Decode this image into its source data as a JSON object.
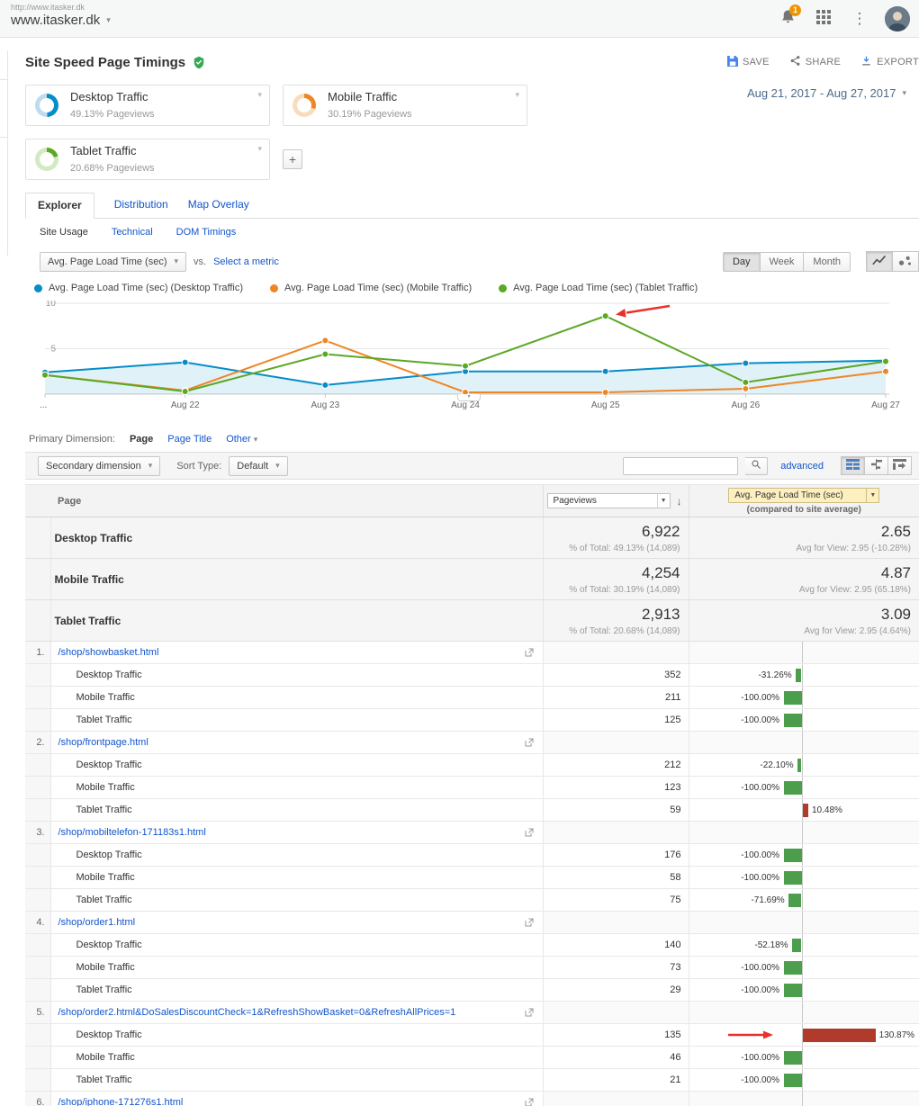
{
  "topbar": {
    "url": "http://www.itasker.dk",
    "account": "www.itasker.dk",
    "badge": "1"
  },
  "header": {
    "title": "Site Speed Page Timings",
    "save": "SAVE",
    "share": "SHARE",
    "export": "EXPORT"
  },
  "segments": [
    {
      "name": "Desktop Traffic",
      "detail": "49.13% Pageviews",
      "pct": 49.13,
      "color": "#058dc7",
      "color_light": "#bedcf0"
    },
    {
      "name": "Mobile Traffic",
      "detail": "30.19% Pageviews",
      "pct": 30.19,
      "color": "#ee8625",
      "color_light": "#f8ddbc"
    },
    {
      "name": "Tablet Traffic",
      "detail": "20.68% Pageviews",
      "pct": 20.68,
      "color": "#5aa824",
      "color_light": "#d4e9c2"
    }
  ],
  "date_range": "Aug 21, 2017 - Aug 27, 2017",
  "tabs": [
    "Explorer",
    "Distribution",
    "Map Overlay"
  ],
  "subtabs": [
    "Site Usage",
    "Technical",
    "DOM Timings"
  ],
  "metric_row": {
    "metric_select": "Avg. Page Load Time (sec)",
    "vs": "vs.",
    "select_metric": "Select a metric",
    "granularity": [
      "Day",
      "Week",
      "Month"
    ]
  },
  "chart_data": {
    "type": "line",
    "x": [
      "Aug 21",
      "Aug 22",
      "Aug 23",
      "Aug 24",
      "Aug 25",
      "Aug 26",
      "Aug 27"
    ],
    "x_tick_labels": [
      "...",
      "Aug 22",
      "Aug 23",
      "Aug 24",
      "Aug 25",
      "Aug 26",
      "Aug 27"
    ],
    "ylim": [
      0,
      10
    ],
    "yticks": [
      5,
      10
    ],
    "ylabel": "Avg. Page Load Time (sec)",
    "grid": true,
    "legend_position": "top",
    "series": [
      {
        "name": "Avg. Page Load Time (sec) (Desktop Traffic)",
        "color": "#058dc7",
        "fill": true,
        "values": [
          2.4,
          3.5,
          1.0,
          2.5,
          2.5,
          3.4,
          3.7
        ]
      },
      {
        "name": "Avg. Page Load Time (sec) (Mobile Traffic)",
        "color": "#ee8625",
        "fill": false,
        "values": [
          2.1,
          0.4,
          5.9,
          0.2,
          0.2,
          0.6,
          2.5
        ]
      },
      {
        "name": "Avg. Page Load Time (sec) (Tablet Traffic)",
        "color": "#5aa824",
        "fill": false,
        "values": [
          2.1,
          0.3,
          4.4,
          3.1,
          8.6,
          1.3,
          3.6
        ]
      }
    ],
    "annotation": "red arrow pointing at Tablet Traffic peak on Aug 25"
  },
  "primary_dimension": {
    "label": "Primary Dimension:",
    "active": "Page",
    "links": [
      "Page Title",
      "Other"
    ]
  },
  "toolbar": {
    "secondary": "Secondary dimension",
    "sort_label": "Sort Type:",
    "sort_value": "Default",
    "advanced": "advanced",
    "search_value": ""
  },
  "table": {
    "header": {
      "page": "Page",
      "pageviews": "Pageviews",
      "metric": "Avg. Page Load Time (sec)",
      "caption": "(compared to site average)"
    },
    "summary": [
      {
        "label": "Desktop Traffic",
        "pageviews": "6,922",
        "pageviews_note": "% of Total: 49.13% (14,089)",
        "metric": "2.65",
        "metric_note": "Avg for View: 2.95 (-10.28%)"
      },
      {
        "label": "Mobile Traffic",
        "pageviews": "4,254",
        "pageviews_note": "% of Total: 30.19% (14,089)",
        "metric": "4.87",
        "metric_note": "Avg for View: 2.95 (65.18%)"
      },
      {
        "label": "Tablet Traffic",
        "pageviews": "2,913",
        "pageviews_note": "% of Total: 20.68% (14,089)",
        "metric": "3.09",
        "metric_note": "Avg for View: 2.95 (4.64%)"
      }
    ],
    "rows": [
      {
        "index": "1.",
        "page": "/shop/showbasket.html",
        "segments": [
          {
            "label": "Desktop Traffic",
            "pageviews": "352",
            "delta": "-31.26%"
          },
          {
            "label": "Mobile Traffic",
            "pageviews": "211",
            "delta": "-100.00%"
          },
          {
            "label": "Tablet Traffic",
            "pageviews": "125",
            "delta": "-100.00%"
          }
        ]
      },
      {
        "index": "2.",
        "page": "/shop/frontpage.html",
        "segments": [
          {
            "label": "Desktop Traffic",
            "pageviews": "212",
            "delta": "-22.10%"
          },
          {
            "label": "Mobile Traffic",
            "pageviews": "123",
            "delta": "-100.00%"
          },
          {
            "label": "Tablet Traffic",
            "pageviews": "59",
            "delta": "10.48%"
          }
        ]
      },
      {
        "index": "3.",
        "page": "/shop/mobiltelefon-171183s1.html",
        "segments": [
          {
            "label": "Desktop Traffic",
            "pageviews": "176",
            "delta": "-100.00%"
          },
          {
            "label": "Mobile Traffic",
            "pageviews": "58",
            "delta": "-100.00%"
          },
          {
            "label": "Tablet Traffic",
            "pageviews": "75",
            "delta": "-71.69%"
          }
        ]
      },
      {
        "index": "4.",
        "page": "/shop/order1.html",
        "segments": [
          {
            "label": "Desktop Traffic",
            "pageviews": "140",
            "delta": "-52.18%"
          },
          {
            "label": "Mobile Traffic",
            "pageviews": "73",
            "delta": "-100.00%"
          },
          {
            "label": "Tablet Traffic",
            "pageviews": "29",
            "delta": "-100.00%"
          }
        ]
      },
      {
        "index": "5.",
        "page": "/shop/order2.html&DoSalesDiscountCheck=1&RefreshShowBasket=0&RefreshAllPrices=1",
        "segments": [
          {
            "label": "Desktop Traffic",
            "pageviews": "135",
            "delta": "130.87%",
            "arrow": true
          },
          {
            "label": "Mobile Traffic",
            "pageviews": "46",
            "delta": "-100.00%"
          },
          {
            "label": "Tablet Traffic",
            "pageviews": "21",
            "delta": "-100.00%"
          }
        ]
      },
      {
        "index": "6.",
        "page": "/shop/iphone-171276s1.html",
        "segments": []
      }
    ]
  },
  "colors": {
    "positive_bar": "#b03a2b",
    "negative_bar": "#4c9e4c",
    "annotation": "#e8312a",
    "link": "#1155cc",
    "badge": "#f09300"
  },
  "icons": {
    "caret_down": "▾",
    "select_arrow": "▼",
    "sort_down": "↓",
    "more_vertical": "⋮",
    "plus": "+"
  }
}
